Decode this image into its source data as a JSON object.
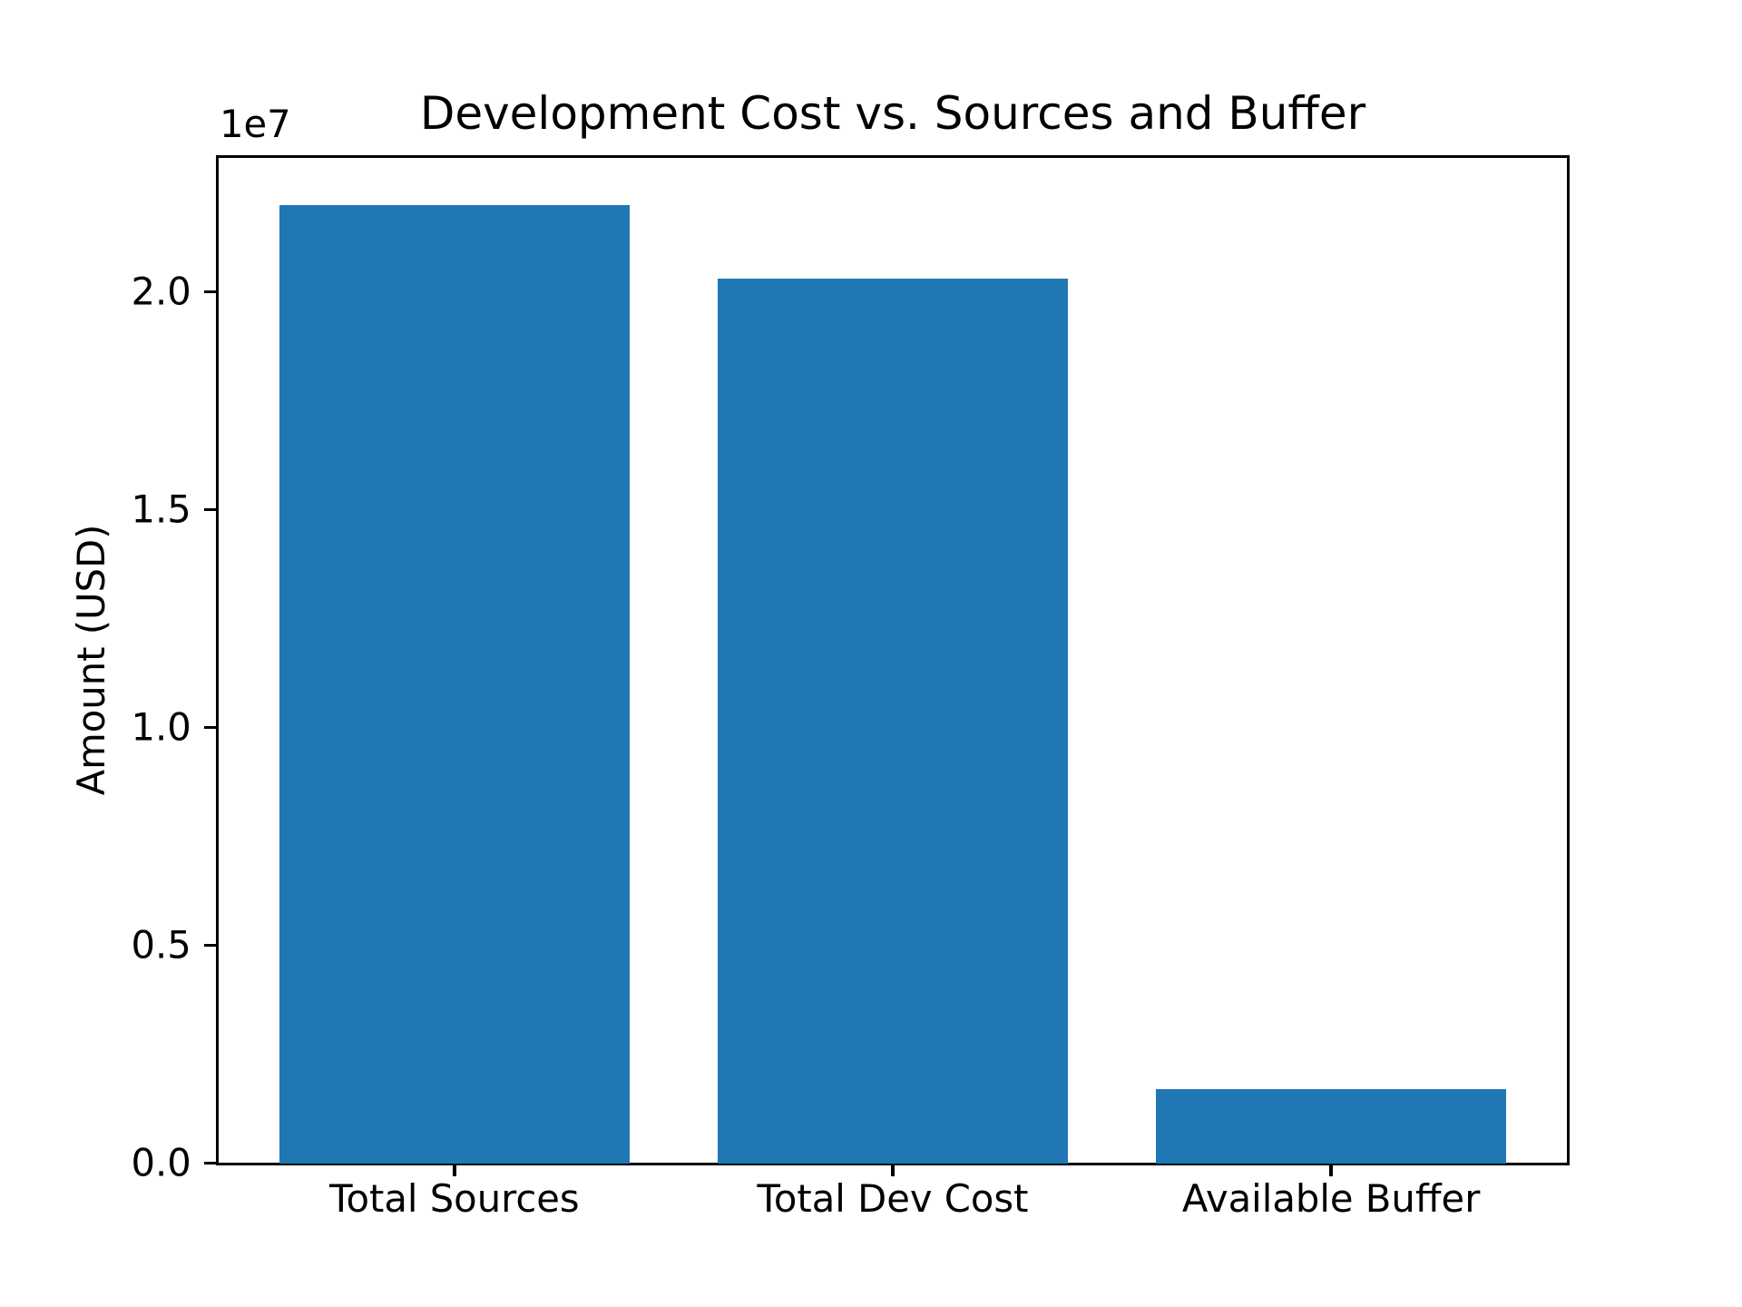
{
  "chart_data": {
    "type": "bar",
    "title": "Development Cost vs. Sources and Buffer",
    "xlabel": "",
    "ylabel": "Amount (USD)",
    "categories": [
      "Total Sources",
      "Total Dev Cost",
      "Available Buffer"
    ],
    "values": [
      22000000,
      20300000,
      1700000
    ],
    "bar_color": "#1f77b4",
    "axis_color": "#000000",
    "text_color": "#000000",
    "background_color": "#ffffff",
    "ylim": [
      0,
      23100000
    ],
    "yticks": {
      "values": [
        0,
        5000000,
        10000000,
        15000000,
        20000000
      ],
      "labels": [
        "0.0",
        "0.5",
        "1.0",
        "1.5",
        "2.0"
      ],
      "offset_text": "1e7"
    },
    "grid": false,
    "legend": null
  }
}
